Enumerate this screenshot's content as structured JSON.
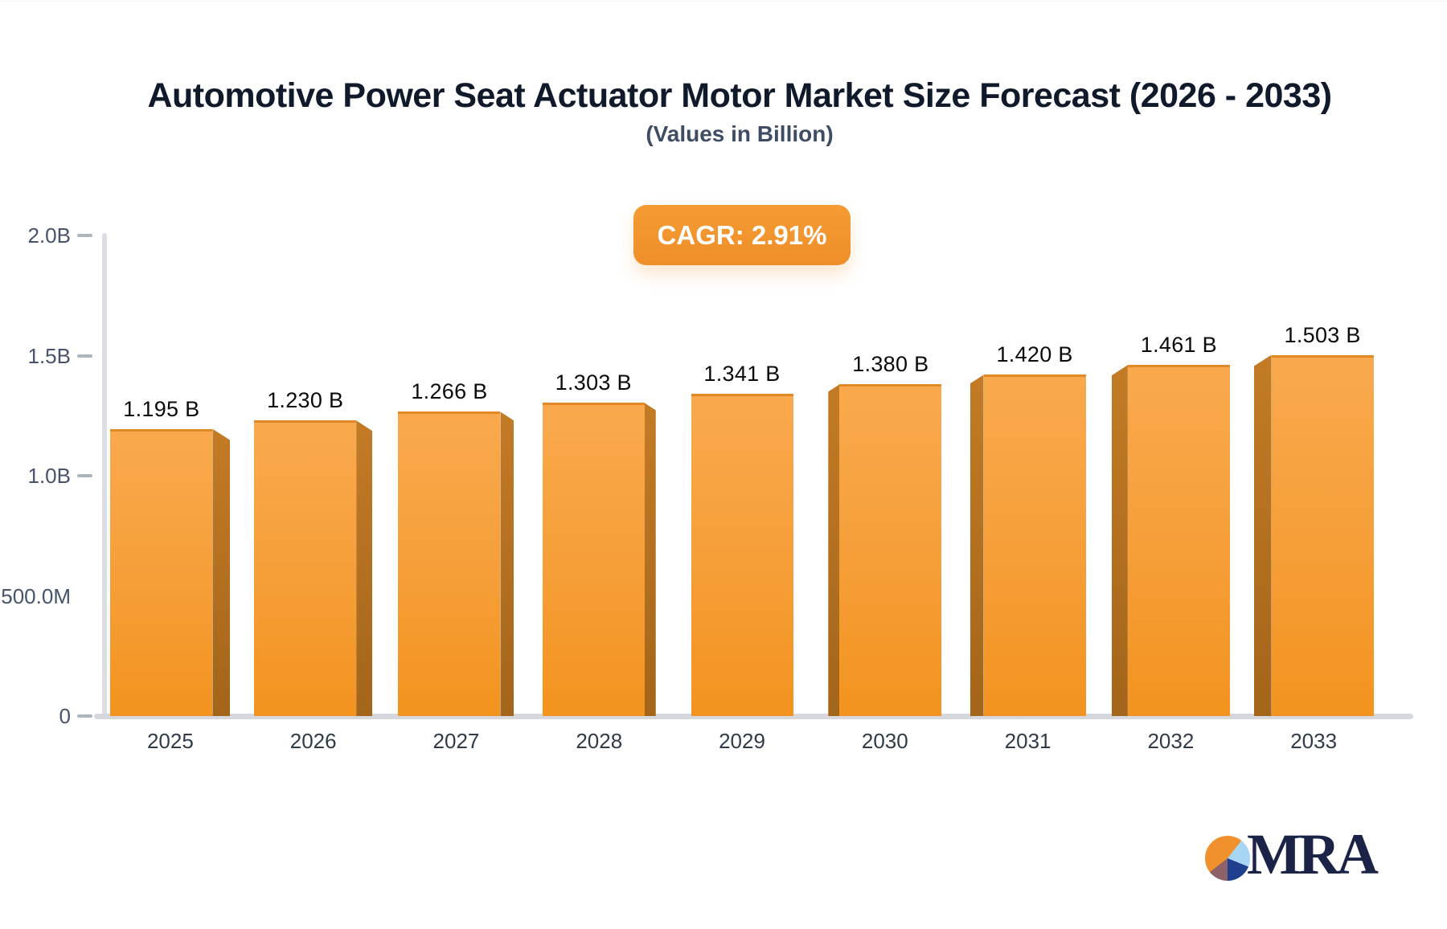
{
  "header": {
    "title": "Automotive Power Seat Actuator Motor Market Size Forecast (2026 - 2033)",
    "subtitle": "(Values in Billion)",
    "cagr_label": "CAGR: 2.91%"
  },
  "brand": {
    "logo_text": "MRA",
    "logo_icon": "pie-chart-icon"
  },
  "colors": {
    "bar_face_top": "#f9a94d",
    "bar_face_bottom": "#f3931f",
    "bar_side": "#b06f1f",
    "badge": "#f0922e",
    "axis": "#d7d8dd",
    "title": "#101a2b",
    "subtitle": "#3e4d63",
    "logo_navy": "#1b2447"
  },
  "chart_data": {
    "type": "bar",
    "title": "Automotive Power Seat Actuator Motor Market Size Forecast (2026 - 2033)",
    "subtitle": "(Values in Billion)",
    "xlabel": "",
    "ylabel": "",
    "categories": [
      "2025",
      "2026",
      "2027",
      "2028",
      "2029",
      "2030",
      "2031",
      "2032",
      "2033"
    ],
    "values": [
      1.195,
      1.23,
      1.266,
      1.303,
      1.341,
      1.38,
      1.42,
      1.461,
      1.503
    ],
    "value_labels": [
      "1.195 B",
      "1.230 B",
      "1.266 B",
      "1.303 B",
      "1.341 B",
      "1.380 B",
      "1.420 B",
      "1.461 B",
      "1.503 B"
    ],
    "unit": "Billion",
    "cagr": "2.91%",
    "ylim": [
      0,
      2.0
    ],
    "grid": false,
    "legend": "none",
    "yticks": [
      {
        "label": "2.0B",
        "value": 2.0,
        "dash": true
      },
      {
        "label": "1.5B",
        "value": 1.5,
        "dash": true
      },
      {
        "label": "1.0B",
        "value": 1.0,
        "dash": true
      },
      {
        "label": "500.0M",
        "value": 0.5,
        "dash": false
      },
      {
        "label": "0",
        "value": 0.0,
        "dash": true
      }
    ],
    "style_3d_extrusion": [
      "right",
      "right",
      "right",
      "right",
      "none",
      "left",
      "left",
      "left",
      "left"
    ]
  }
}
